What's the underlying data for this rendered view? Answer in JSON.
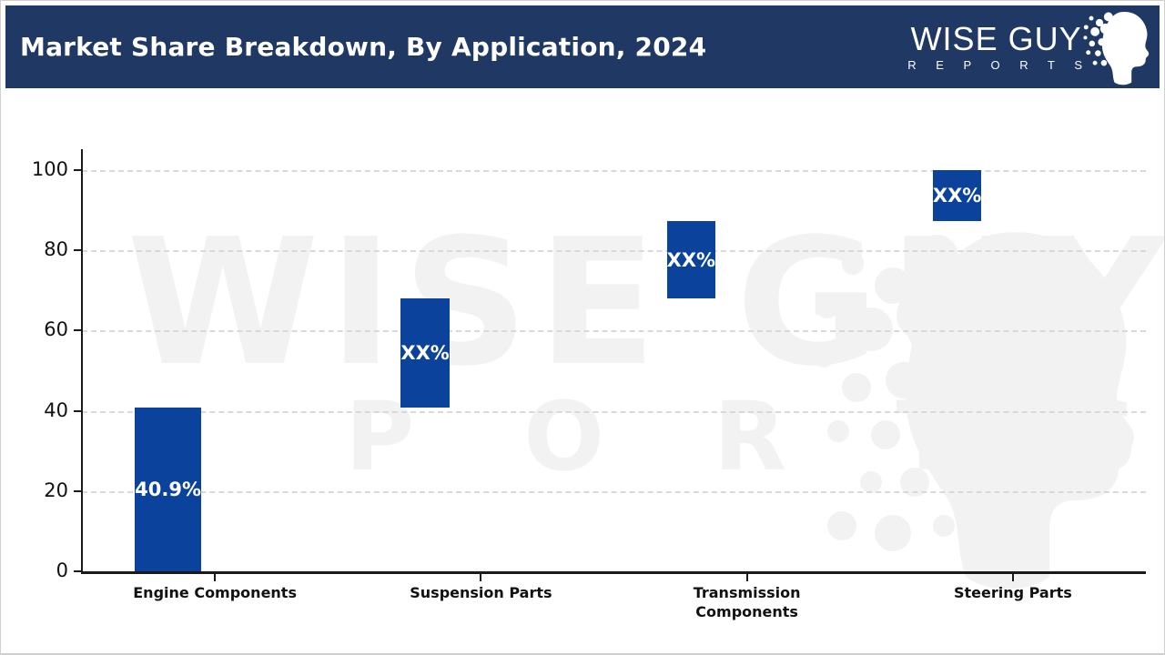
{
  "header": {
    "title": "Market Share Breakdown, By Application, 2024",
    "logo": {
      "line1": "WISE GUY",
      "line2": "R E P O R T S"
    }
  },
  "watermark": {
    "line1": "WISE GUY",
    "line2": "P O R T S"
  },
  "colors": {
    "header_bg": "#1f3864",
    "bar": "#0a429c",
    "gridline": "#d9d9d9",
    "watermark": "#f2f2f2",
    "axis": "#1a1a1a",
    "label_on_bar": "#ffffff"
  },
  "chart_data": {
    "type": "bar",
    "subtype": "waterfall",
    "title": "Market Share Breakdown, By Application, 2024",
    "categories": [
      "Engine Components",
      "Suspension Parts",
      "Transmission Components",
      "Steering Parts"
    ],
    "segments": [
      {
        "category": "Engine Components",
        "start": 0,
        "end": 40.9,
        "label": "40.9%"
      },
      {
        "category": "Suspension Parts",
        "start": 40.9,
        "end": 68,
        "label": "XX%"
      },
      {
        "category": "Transmission Components",
        "start": 68,
        "end": 87.3,
        "label": "XX%"
      },
      {
        "category": "Steering Parts",
        "start": 87.3,
        "end": 100,
        "label": "XX%"
      },
      {
        "category": "",
        "start": 0,
        "end": 0,
        "label": ""
      }
    ],
    "y_ticks": [
      0,
      20,
      40,
      60,
      80,
      100
    ],
    "ylim": [
      0,
      100
    ],
    "xlabel": "",
    "ylabel": "",
    "grid": "horizontal-dashed",
    "legend": "none"
  }
}
